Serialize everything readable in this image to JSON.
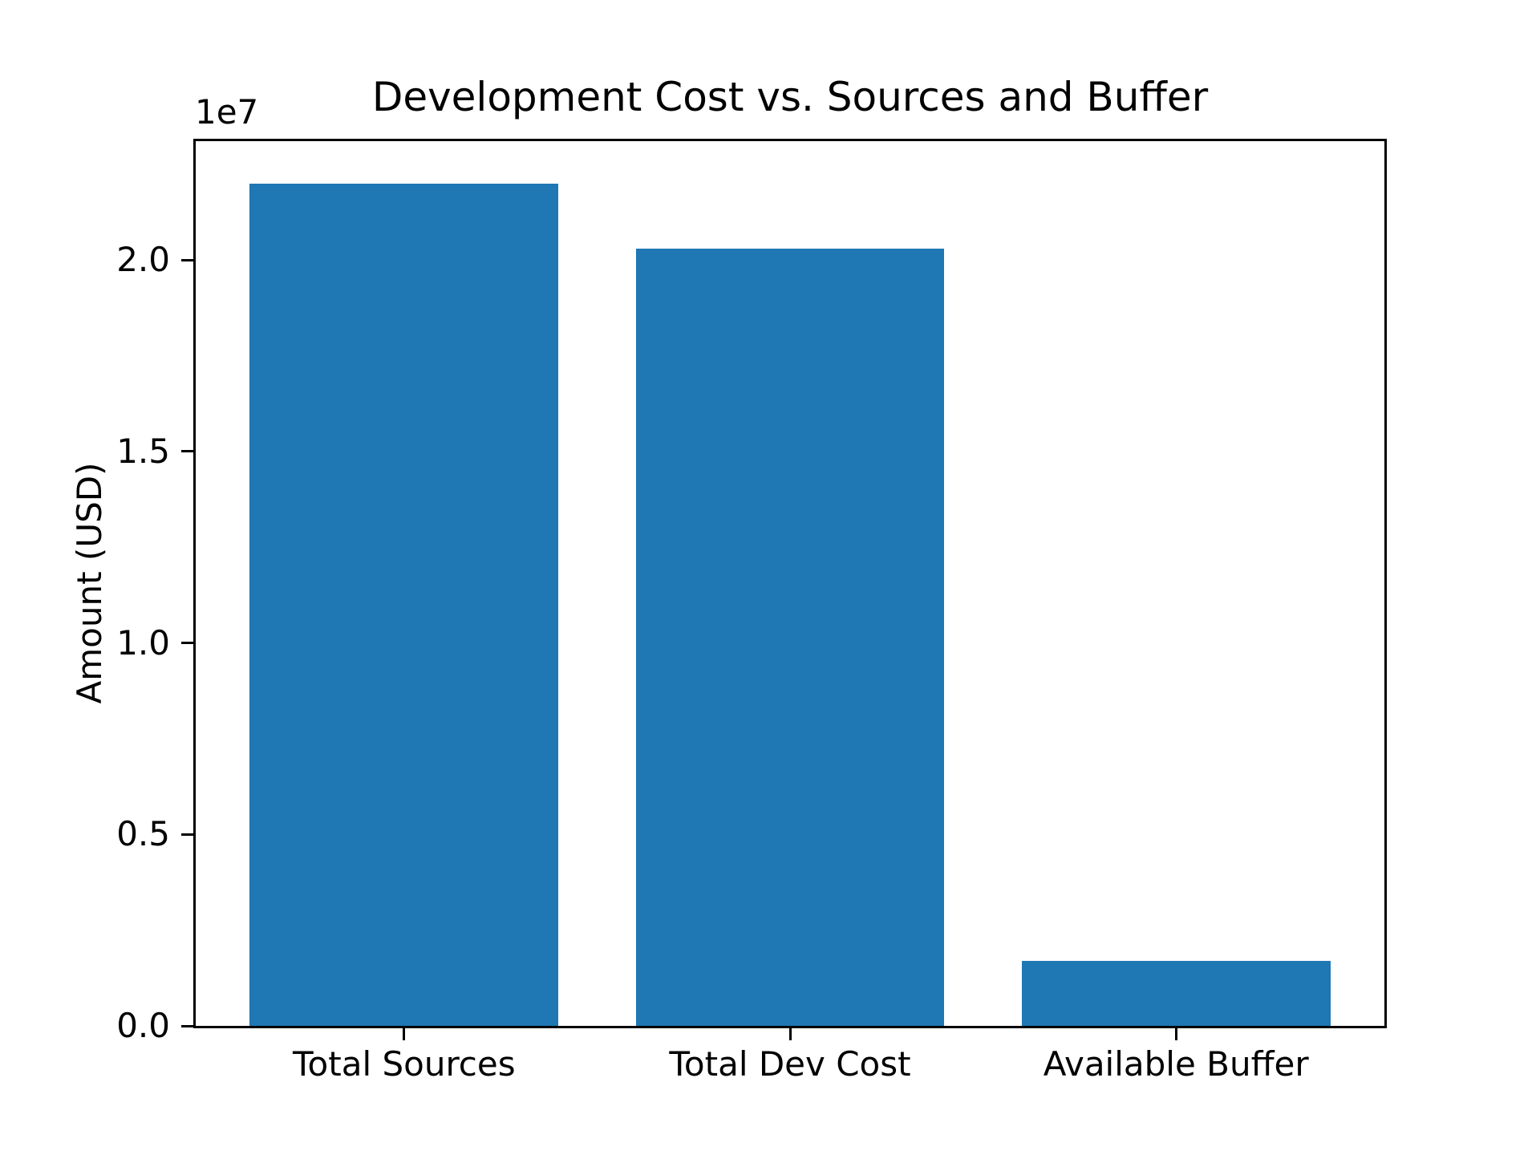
{
  "chart_data": {
    "type": "bar",
    "title": "Development Cost vs. Sources and Buffer",
    "categories": [
      "Total Sources",
      "Total Dev Cost",
      "Available Buffer"
    ],
    "values": [
      22000000,
      20300000,
      1700000
    ],
    "xlabel": "",
    "ylabel": "Amount (USD)",
    "ylim": [
      0,
      23100000
    ],
    "xlim": [
      -0.54,
      2.54
    ],
    "yticks": [
      0,
      5000000,
      10000000,
      15000000,
      20000000
    ],
    "ytick_labels": [
      "0.0",
      "0.5",
      "1.0",
      "1.5",
      "2.0"
    ],
    "y_offset_text": "1e7",
    "bar_width": 0.8,
    "bar_color": "#1f77b4",
    "grid": false,
    "legend": null,
    "background_color": "#ffffff",
    "spine_color": "#000000",
    "text_color": "#000000"
  }
}
